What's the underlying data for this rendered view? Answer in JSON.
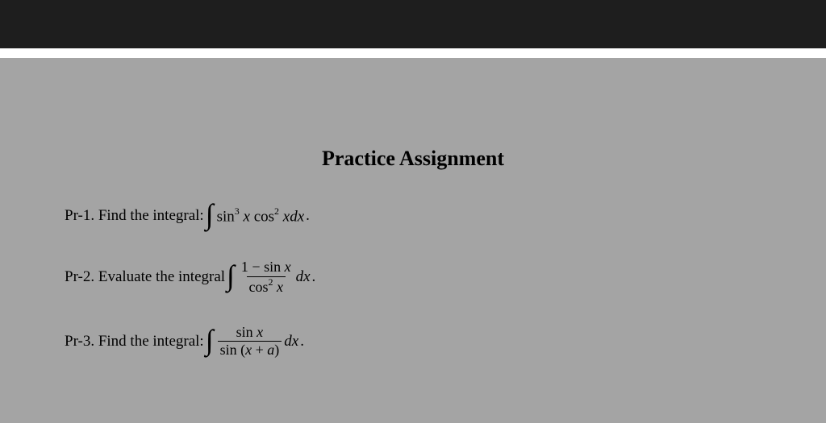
{
  "colors": {
    "top_bar": "#1e1e1e",
    "gap": "#ffffff",
    "page_bg": "#a4a4a4",
    "text": "#000000"
  },
  "title": "Practice Assignment",
  "problems": {
    "p1": {
      "label": "Pr-1. Find the integral: ",
      "expr_plain": "sin^3 x cos^2 x dx",
      "sup1": "3",
      "sup2": "2",
      "period": "."
    },
    "p2": {
      "label": "Pr-2. Evaluate the integral ",
      "numerator": "1 − sin x",
      "denom_base": "cos",
      "denom_sup": "2",
      "denom_var": " x",
      "dx": " dx",
      "period": "."
    },
    "p3": {
      "label": "Pr-3. Find the integral: ",
      "numerator": "sin x",
      "denominator": "sin (x + a)",
      "dx": "dx",
      "period": "."
    }
  }
}
